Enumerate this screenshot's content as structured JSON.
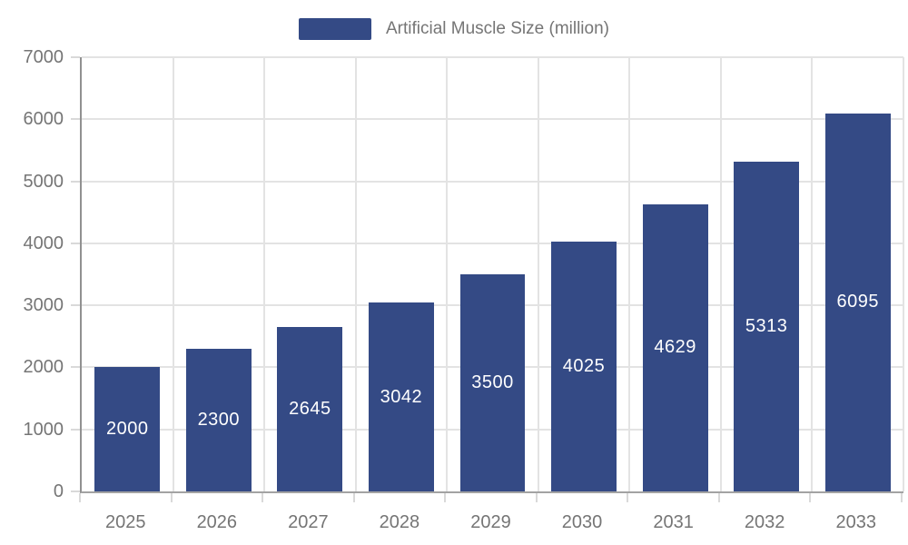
{
  "legend": {
    "label": "Artificial Muscle Size (million)"
  },
  "chart_data": {
    "type": "bar",
    "title": "Artificial Muscle Size (million)",
    "categories": [
      "2025",
      "2026",
      "2027",
      "2028",
      "2029",
      "2030",
      "2031",
      "2032",
      "2033"
    ],
    "series": [
      {
        "name": "Artificial Muscle Size (million)",
        "values": [
          2000,
          2300,
          2645,
          3042,
          3500,
          4025,
          4629,
          5313,
          6095
        ]
      }
    ],
    "xlabel": "",
    "ylabel": "",
    "ylim": [
      0,
      7000
    ],
    "yticks": [
      0,
      1000,
      2000,
      3000,
      4000,
      5000,
      6000,
      7000
    ],
    "grid": true,
    "legend_position": "top",
    "bar_labels_inside": true
  },
  "colors": {
    "bar": "#344a85",
    "bar_label": "#ffffff",
    "grid": "#e3e3e3",
    "tick": "#d9d9d9",
    "axis_y": "#919191",
    "axis_x": "#a3a3a3",
    "text": "#757575",
    "background": "#ffffff"
  }
}
